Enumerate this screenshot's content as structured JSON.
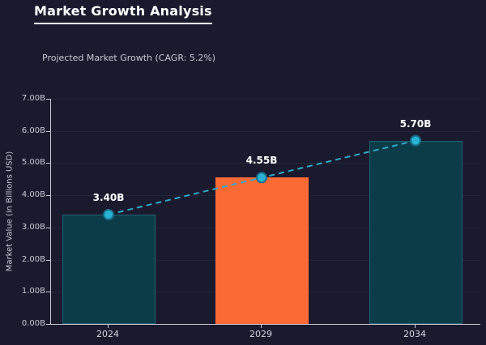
{
  "chart_data": {
    "type": "bar",
    "title": "Market Growth Analysis",
    "subtitle": "Projected Market Growth (CAGR: 5.2%)",
    "xlabel": "",
    "ylabel": "Market Value (in Billions USD)",
    "categories": [
      "2024",
      "2029",
      "2034"
    ],
    "values": [
      3.4,
      4.55,
      5.7
    ],
    "value_labels": [
      "3.40B",
      "4.55B",
      "5.70B"
    ],
    "yticks": [
      "0.00B",
      "1.00B",
      "2.00B",
      "3.00B",
      "4.00B",
      "5.00B",
      "6.00B",
      "7.00B"
    ],
    "ylim": [
      0,
      7
    ],
    "grid": false,
    "legend": "none",
    "overlay_line": "dashed trend line with circular markers connecting bar tops",
    "bar_colors": [
      "#0d3c49",
      "#fb6a35",
      "#0d3c49"
    ],
    "bar_edge_colors": [
      "#1e6378",
      "#fb6a35",
      "#1e6378"
    ],
    "line_color": "#2fa8c9",
    "marker_color": "#27b2d6",
    "marker_edge_color": "#17708c",
    "background_color": "#1a1a2e",
    "title_color": "#ffffff",
    "tick_color": "#c9c9d4"
  }
}
